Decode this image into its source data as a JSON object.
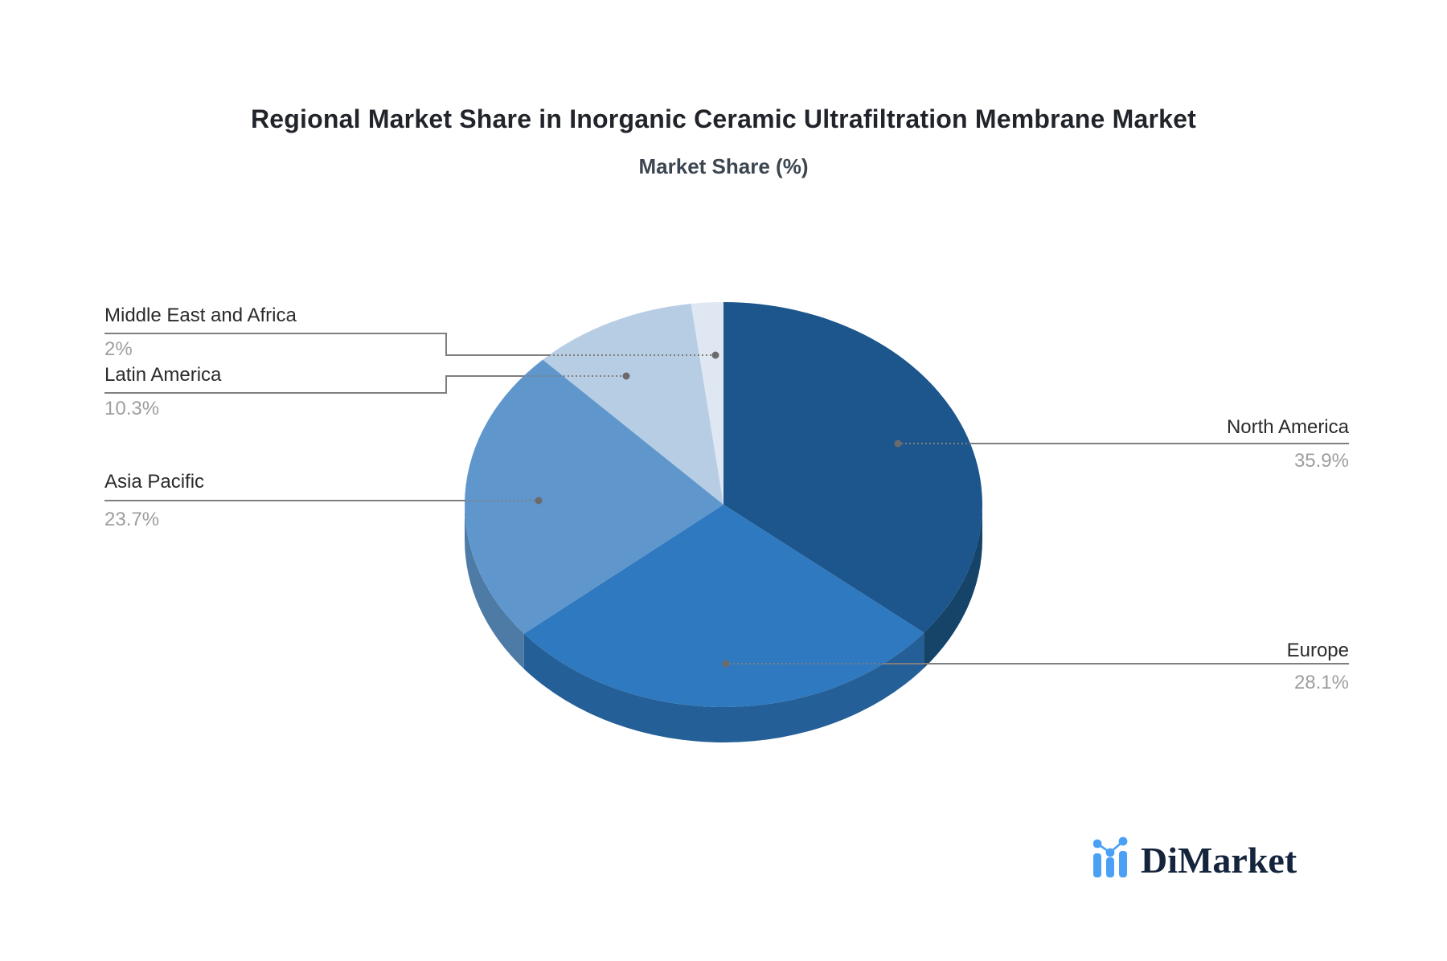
{
  "title": "Regional Market Share in Inorganic Ceramic Ultrafiltration Membrane Market",
  "subtitle": "Market Share (%)",
  "chart_data": {
    "type": "pie",
    "style": "3d",
    "start_angle": "top",
    "direction": "clockwise",
    "unit": "%",
    "title": "Regional Market Share in Inorganic Ceramic Ultrafiltration Membrane Market",
    "subtitle": "Market Share (%)",
    "categories": [
      "North America",
      "Europe",
      "Asia Pacific",
      "Latin America",
      "Middle East and Africa"
    ],
    "values": [
      35.9,
      28.1,
      23.7,
      10.3,
      2
    ],
    "colors": [
      "#1d568c",
      "#2e79bf",
      "#5f97cd",
      "#b7cde4",
      "#dfe8f2"
    ],
    "rim_colors": [
      "#164368",
      "#255f97",
      "#4e7ba6",
      "#9db8d4",
      "#c2d2e6"
    ],
    "legend_position": "callout-labels"
  },
  "slices": [
    {
      "label": "North America",
      "value": 35.9,
      "value_text": "35.9%"
    },
    {
      "label": "Europe",
      "value": 28.1,
      "value_text": "28.1%"
    },
    {
      "label": "Asia Pacific",
      "value": 23.7,
      "value_text": "23.7%"
    },
    {
      "label": "Latin America",
      "value": 10.3,
      "value_text": "10.3%"
    },
    {
      "label": "Middle East and Africa",
      "value": 2,
      "value_text": "2%"
    }
  ],
  "leader_line_color": "#7f7f7f",
  "leader_dot_color": "#6b6b6b",
  "logo": {
    "text": "DiMarket",
    "icon": "bar-line-chart-icon",
    "icon_color": "#4aa0f5",
    "text_color": "#15243d"
  }
}
